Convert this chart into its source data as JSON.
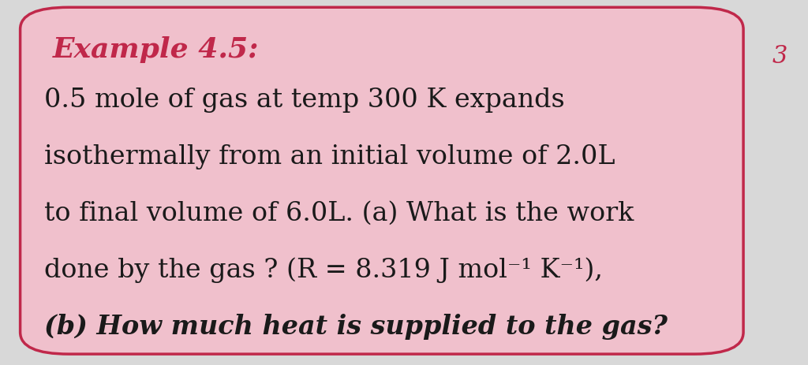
{
  "title": "Example 4.5:",
  "title_color": "#c0284a",
  "title_fontsize": 26,
  "body_lines": [
    "0.5 mole of gas at temp 300 K expands",
    "isothermally from an initial volume of 2.0L",
    "to final volume of 6.0L. (a) What is the work",
    "done by the gas ? (R = 8.319 J mol⁻¹ K⁻¹),",
    "(b) How much heat is supplied to the gas?"
  ],
  "body_fontsize": 24,
  "body_color": "#1a1a1a",
  "card_bg": "#f0c0cc",
  "card_edge_color": "#c0284a",
  "fig_bg": "#d8d8d8",
  "page_num": "3",
  "page_num_color": "#c0284a",
  "page_num_fontsize": 22
}
